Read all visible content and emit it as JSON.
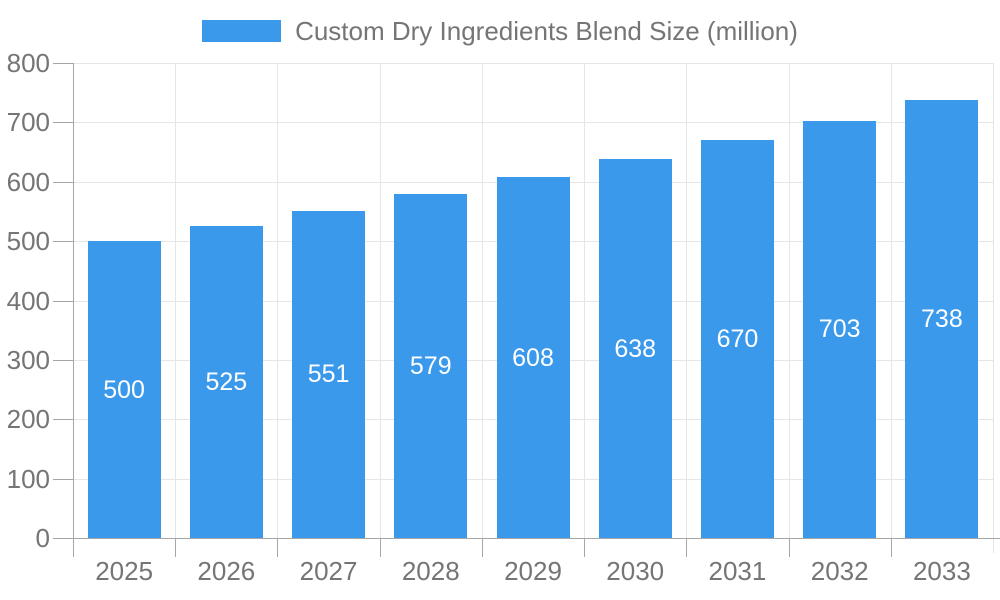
{
  "chart_data": {
    "type": "bar",
    "title": "Custom Dry Ingredients Blend Size (million)",
    "categories": [
      "2025",
      "2026",
      "2027",
      "2028",
      "2029",
      "2030",
      "2031",
      "2032",
      "2033"
    ],
    "values": [
      500,
      525,
      551,
      579,
      608,
      638,
      670,
      703,
      738
    ],
    "xlabel": "",
    "ylabel": "",
    "ylim": [
      0,
      800
    ],
    "ytick_step": 100,
    "ytick_labels": [
      "0",
      "100",
      "200",
      "300",
      "400",
      "500",
      "600",
      "700",
      "800"
    ],
    "grid": true,
    "legend_position": "top",
    "bar_value_labels_visible": true
  },
  "colors": {
    "bar": "#3b99ec",
    "bar_label": "#ffffff",
    "axis_text": "#757575",
    "grid_line": "#e6e6e6",
    "axis_line": "#a6a6a6",
    "tick_line": "#a6a6a6",
    "background": "#ffffff"
  }
}
